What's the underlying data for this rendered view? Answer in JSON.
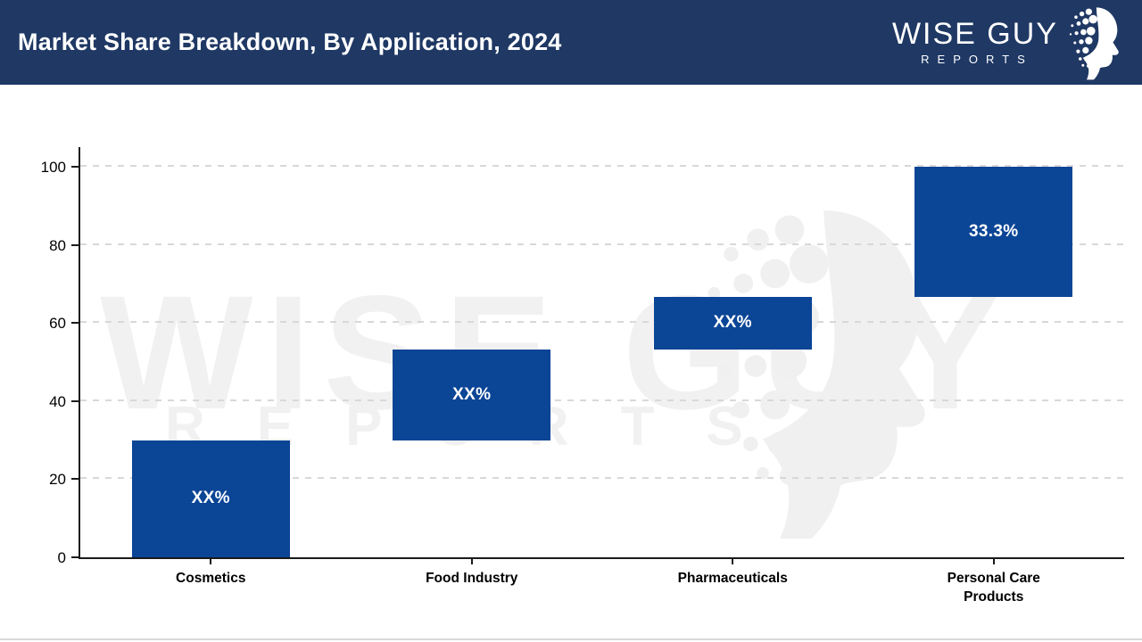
{
  "header": {
    "title": "Market Share Breakdown, By Application, 2024",
    "logo": {
      "line1": "WISE GUY",
      "line2": "REPORTS"
    }
  },
  "watermark": {
    "line1": "WISE GUY",
    "line2": "REPORTS"
  },
  "colors": {
    "header_bg": "#1f3864",
    "bar": "#0b4596",
    "bar_label": "#ffffff",
    "grid": "#d8d8d8",
    "axis": "#1a1a1a",
    "watermark": "#f1f1f1"
  },
  "chart_data": {
    "type": "bar",
    "subtype": "waterfall",
    "title": "Market Share Breakdown, By Application, 2024",
    "xlabel": "",
    "ylabel": "",
    "categories": [
      "Cosmetics",
      "Food Industry",
      "Pharmaceuticals",
      "Personal Care Products"
    ],
    "bars": [
      {
        "category": "Cosmetics",
        "start": 0,
        "end": 30,
        "label": "XX%"
      },
      {
        "category": "Food Industry",
        "start": 30,
        "end": 53.3,
        "label": "XX%"
      },
      {
        "category": "Pharmaceuticals",
        "start": 53.3,
        "end": 66.7,
        "label": "XX%"
      },
      {
        "category": "Personal Care Products",
        "start": 66.7,
        "end": 100,
        "label": "33.3%"
      }
    ],
    "yticks": [
      0,
      20,
      40,
      60,
      80,
      100
    ],
    "ylim": [
      0,
      105
    ],
    "grid": "dashed-horizontal-behind-bars",
    "legend": "none",
    "bar_width_frac": 0.151
  }
}
